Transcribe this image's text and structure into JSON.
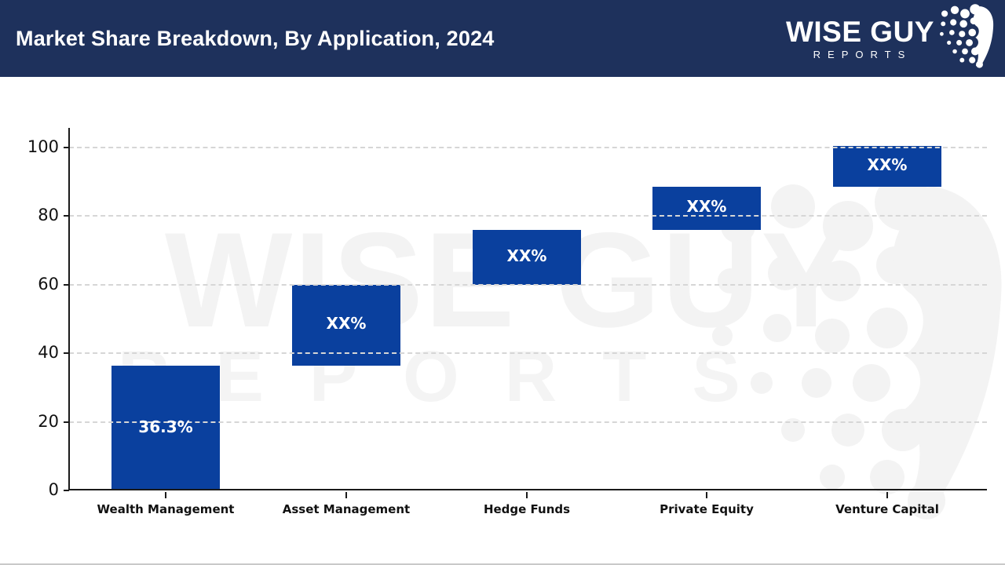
{
  "header": {
    "title": "Market Share Breakdown, By Application, 2024",
    "logo": {
      "line1": "WISE GUY",
      "line2": "REPORTS"
    }
  },
  "watermark": {
    "line1": "WISE GUY",
    "line2": "REPORTS"
  },
  "colors": {
    "header_bg": "#1e315c",
    "bar": "#0a409e",
    "grid": "#d6d6d6",
    "axis": "#1a1a1a",
    "bar_label": "#ffffff",
    "bottom_hairline": "#c9c9c9"
  },
  "icons": {
    "logo_face": "dotted-face-profile"
  },
  "chart_data": {
    "type": "bar",
    "subtype": "waterfall",
    "title": "Market Share Breakdown, By Application, 2024",
    "categories": [
      "Wealth Management",
      "Asset Management",
      "Hedge Funds",
      "Private Equity",
      "Venture Capital"
    ],
    "series": [
      {
        "name": "Market Share (%)",
        "segments": [
          {
            "category": "Wealth Management",
            "start": 0,
            "end": 36.3,
            "label": "36.3%"
          },
          {
            "category": "Asset Management",
            "start": 36.3,
            "end": 60,
            "label": "XX%"
          },
          {
            "category": "Hedge Funds",
            "start": 60,
            "end": 76,
            "label": "XX%"
          },
          {
            "category": "Private Equity",
            "start": 76,
            "end": 88.4,
            "label": "XX%"
          },
          {
            "category": "Venture Capital",
            "start": 88.4,
            "end": 100.3,
            "label": "XX%"
          }
        ]
      }
    ],
    "xlabel": "",
    "ylabel": "",
    "yticks": [
      0,
      20,
      40,
      60,
      80,
      100
    ],
    "ytick_labels": [
      "0",
      "20",
      "40",
      "60",
      "80",
      "100"
    ],
    "ylim": [
      0,
      105
    ],
    "grid": "horizontal-dashed-over-bars",
    "legend": "none"
  }
}
